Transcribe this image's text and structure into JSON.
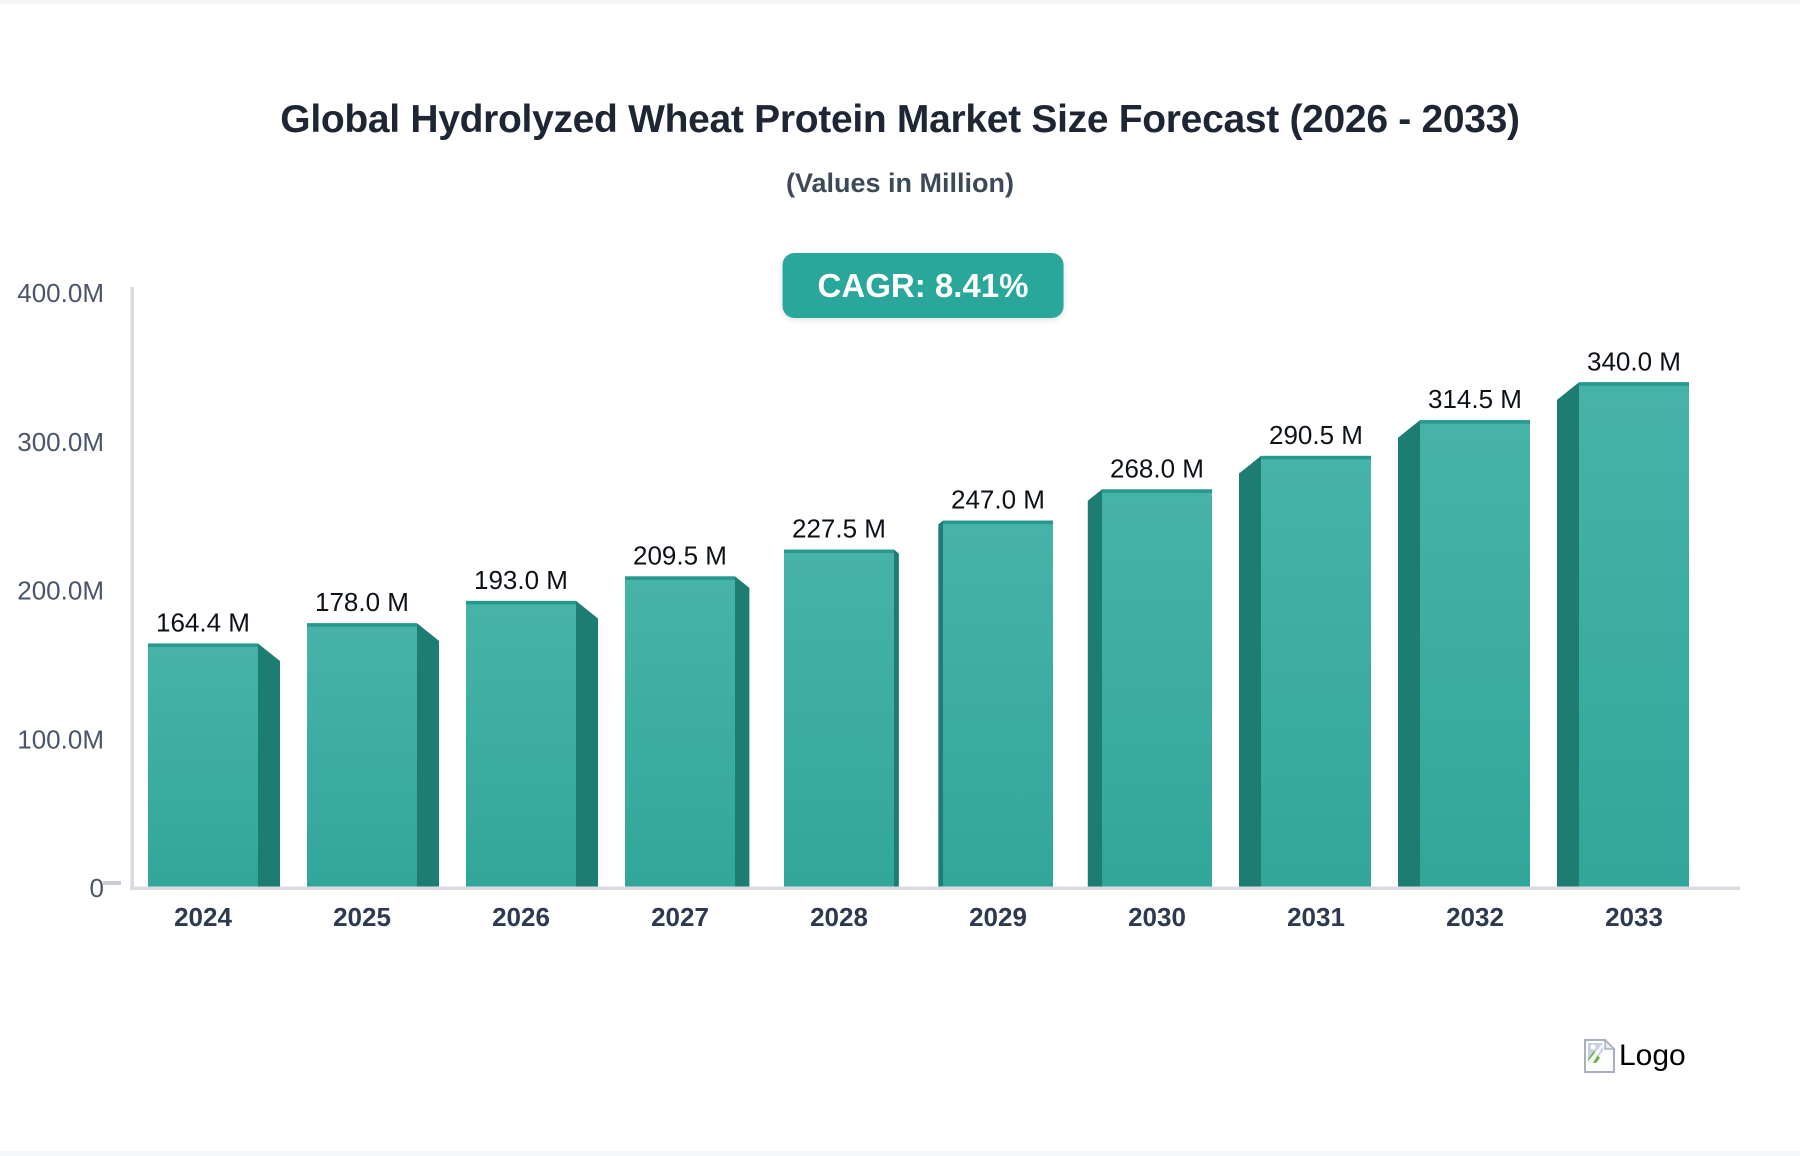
{
  "page": {
    "title": "Global Hydrolyzed Wheat Protein Market Size Forecast (2026 - 2033)",
    "subtitle": "(Values in Million)",
    "logo_text": "Logo"
  },
  "chart_data": {
    "type": "bar",
    "title": "Global Hydrolyzed Wheat Protein Market Size Forecast (2026 - 2033)",
    "subtitle": "(Values in Million)",
    "annotation": "CAGR: 8.41%",
    "categories": [
      "2024",
      "2025",
      "2026",
      "2027",
      "2028",
      "2029",
      "2030",
      "2031",
      "2032",
      "2033"
    ],
    "values": [
      164.4,
      178.0,
      193.0,
      209.5,
      227.5,
      247.0,
      268.0,
      290.5,
      314.5,
      340.0
    ],
    "value_labels": [
      "164.4 M",
      "178.0 M",
      "193.0 M",
      "209.5 M",
      "227.5 M",
      "247.0 M",
      "268.0 M",
      "290.5 M",
      "314.5 M",
      "340.0 M"
    ],
    "ylim": [
      0,
      400
    ],
    "yticks": [
      {
        "value": 400,
        "label": "400.0M"
      },
      {
        "value": 300,
        "label": "300.0M"
      },
      {
        "value": 200,
        "label": "200.0M"
      },
      {
        "value": 100,
        "label": "100.0M"
      },
      {
        "value": 0,
        "label": "0"
      }
    ],
    "grid": false,
    "legend": "none",
    "bar_style": "3d-extruded-toward-center",
    "colors": {
      "bar_top": "#47b3a8",
      "bar_bottom": "#32a69a",
      "bar_side": "#1e7d73",
      "bar_edge": "#27988d",
      "axis": "#d9dbe0",
      "tick_dash": "#c9cdd4",
      "badge": "#2aa79b"
    }
  }
}
